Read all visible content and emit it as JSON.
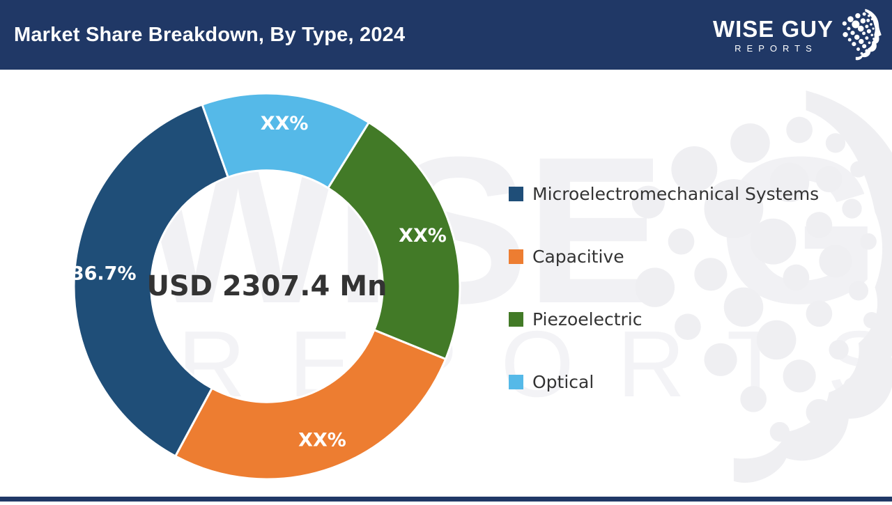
{
  "header": {
    "title": "Market Share Breakdown, By Type, 2024",
    "logo_line1": "WISE GUY",
    "logo_line2": "REPORTS"
  },
  "watermark": {
    "line1": "WISE GUY",
    "line2": "REPORTS"
  },
  "chart_data": {
    "type": "pie",
    "subtype": "donut",
    "title": "Market Share Breakdown, By Type, 2024",
    "center_label": "USD 2307.4 Mn",
    "start_angle_deg": 109.6,
    "direction": "counterclockwise",
    "inner_radius_ratio": 0.6,
    "legend_position": "right",
    "series": [
      {
        "name": "Microelectromechanical Systems",
        "value": 36.7,
        "label": "36.7%",
        "color": "#1F4E78"
      },
      {
        "name": "Capacitive",
        "value": 26.7,
        "label": "XX%",
        "color": "#ED7D31"
      },
      {
        "name": "Piezoelectric",
        "value": 22.3,
        "label": "XX%",
        "color": "#427A27"
      },
      {
        "name": "Optical",
        "value": 14.3,
        "label": "XX%",
        "color": "#55B9E8"
      }
    ]
  },
  "colors": {
    "header_bar": "#203866",
    "footer_bar": "#203866",
    "text_dark": "#333333",
    "segment_label": "#ffffff",
    "watermark": "#f1f1f4"
  }
}
